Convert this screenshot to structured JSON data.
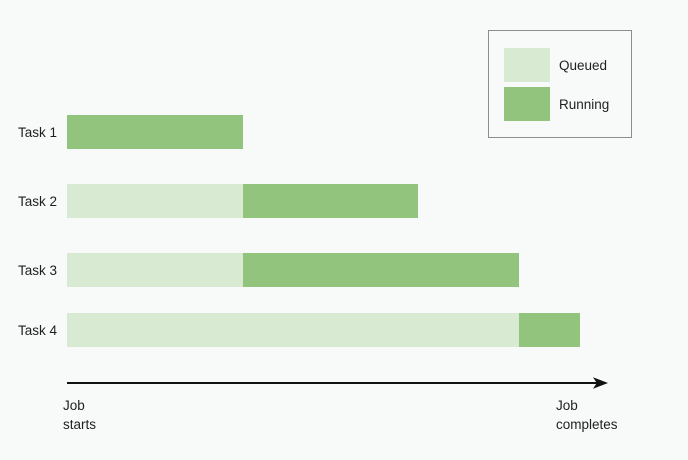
{
  "colors": {
    "background": "#f8f9f9",
    "queued": "#d9ead3",
    "running": "#93c47d",
    "text": "#1f1f1f",
    "axis": "#111111",
    "legend_border": "#8e8e8e"
  },
  "legend": {
    "items": [
      {
        "label": "Queued",
        "key": "queued"
      },
      {
        "label": "Running",
        "key": "running"
      }
    ]
  },
  "axis": {
    "start_label": "Job\nstarts",
    "end_label": "Job\ncompletes"
  },
  "chart_data": {
    "type": "bar",
    "subtype": "gantt-horizontal-stacked",
    "title": "",
    "categories": [
      "Task 1",
      "Task 2",
      "Task 3",
      "Task 4"
    ],
    "x_axis": {
      "start_label": "Job starts",
      "end_label": "Job completes",
      "range_percent": [
        0,
        100
      ],
      "ticks": "none",
      "arrow": true
    },
    "grid": false,
    "legend_position": "top-right",
    "series_names": [
      "Queued",
      "Running"
    ],
    "tasks": [
      {
        "label": "Task 1",
        "queued_percent": [
          0,
          0
        ],
        "running_percent": [
          0,
          34.3
        ]
      },
      {
        "label": "Task 2",
        "queued_percent": [
          0,
          34.3
        ],
        "running_percent": [
          34.3,
          68.4
        ]
      },
      {
        "label": "Task 3",
        "queued_percent": [
          0,
          34.3
        ],
        "running_percent": [
          34.3,
          88.1
        ]
      },
      {
        "label": "Task 4",
        "queued_percent": [
          0,
          88.1
        ],
        "running_percent": [
          88.1,
          100
        ]
      }
    ]
  }
}
